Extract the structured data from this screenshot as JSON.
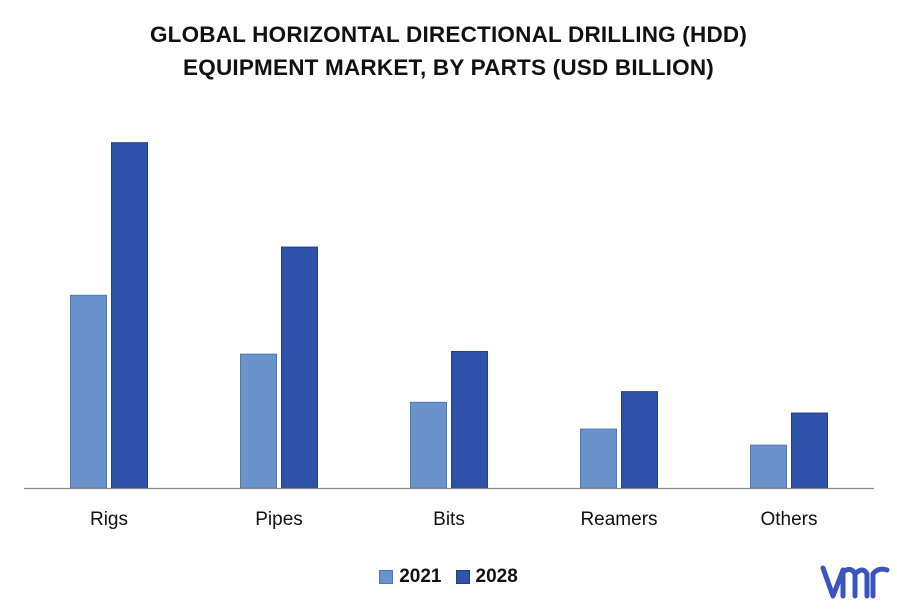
{
  "colors": {
    "s2021": "#6a93cc",
    "s2021_stroke": "#4f78b6",
    "s2028": "#2e52aa",
    "s2028_stroke": "#203f8e",
    "axis": "#8c8c8c",
    "logo": "#3a55c0"
  },
  "chart_data": {
    "type": "bar",
    "title_line1": "GLOBAL HORIZONTAL DIRECTIONAL DRILLING (HDD)",
    "title_line2": "EQUIPMENT MARKET, BY PARTS (USD BILLION)",
    "categories": [
      "Rigs",
      "Pipes",
      "Bits",
      "Reamers",
      "Others"
    ],
    "series": [
      {
        "name": "2021",
        "values": [
          3.6,
          2.5,
          1.6,
          1.1,
          0.8
        ]
      },
      {
        "name": "2028",
        "values": [
          6.45,
          4.5,
          2.55,
          1.8,
          1.4
        ]
      }
    ],
    "ylim": [
      0,
      6.5
    ],
    "grid": false,
    "legend": "bottom",
    "xlabel": "",
    "ylabel": ""
  },
  "logo": {
    "icon": "vmr-logo-icon"
  }
}
